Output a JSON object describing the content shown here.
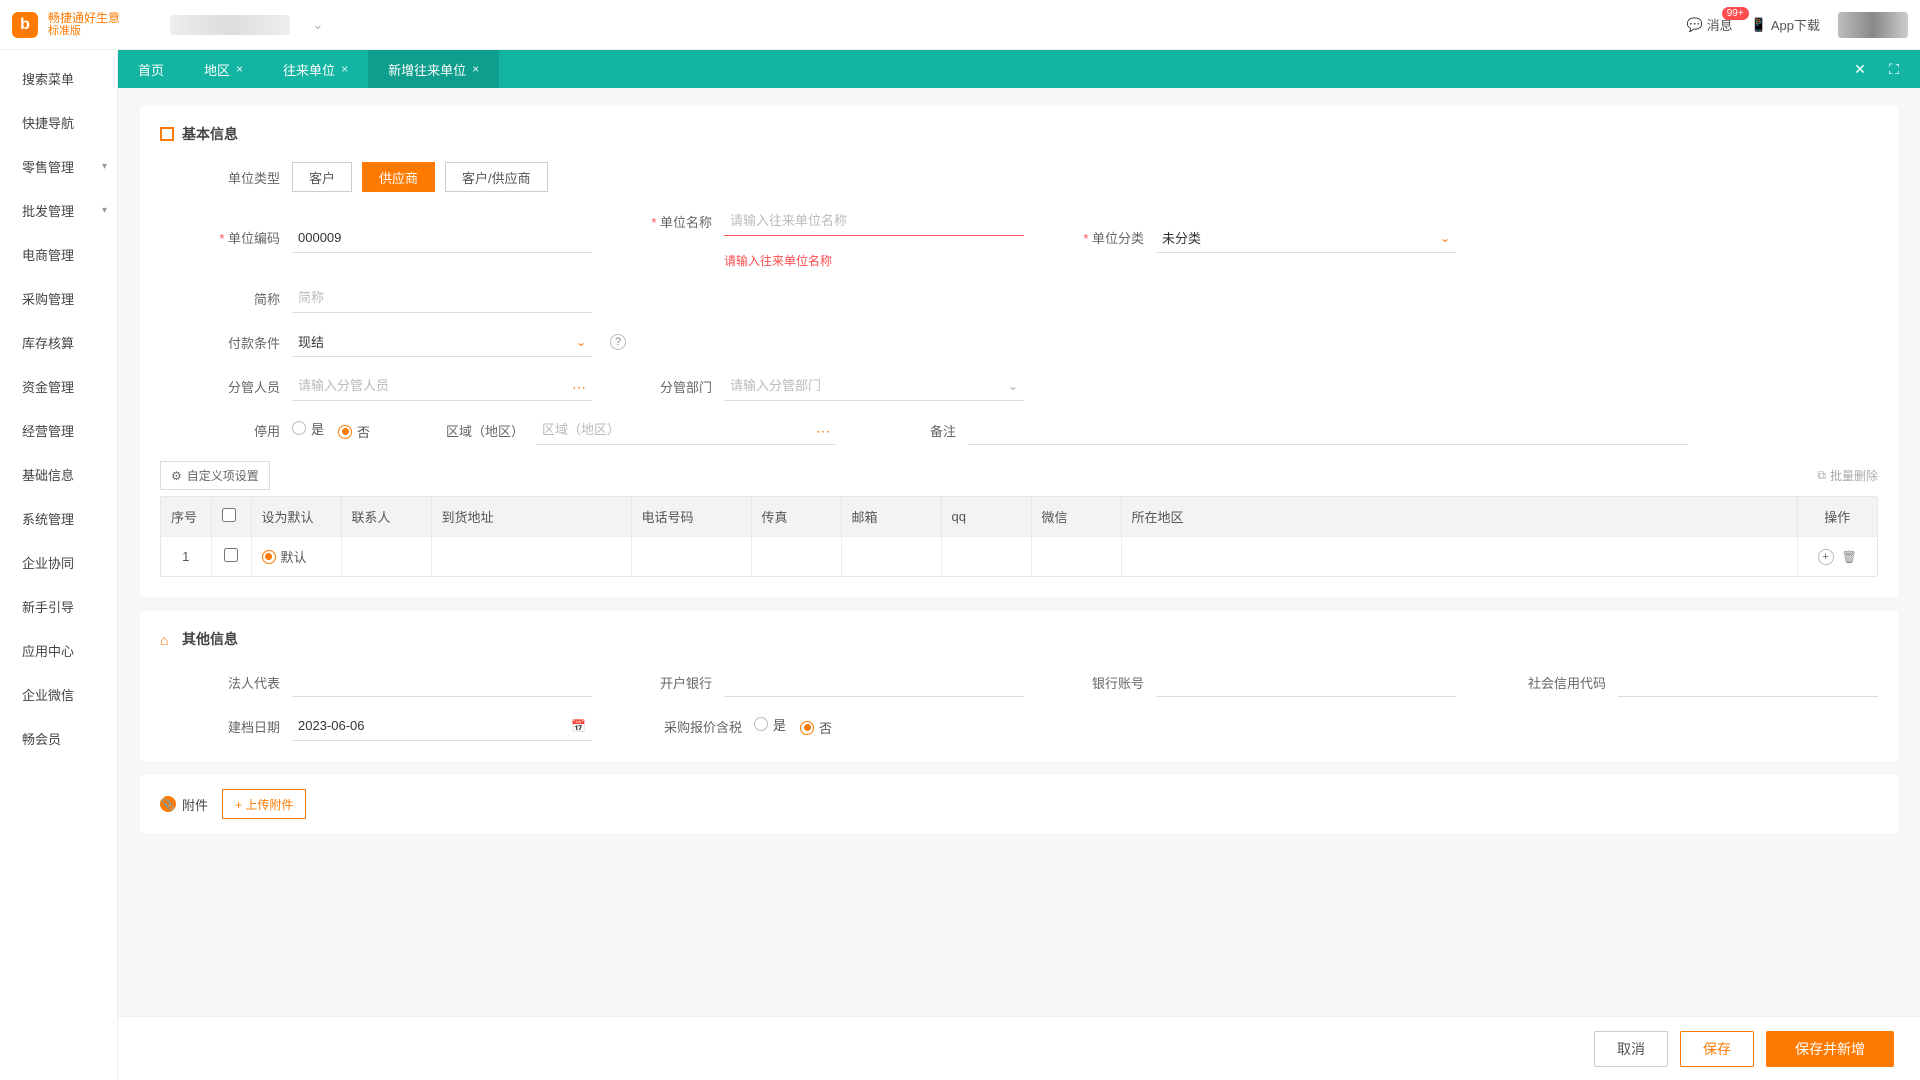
{
  "colors": {
    "accent": "#ff7a00",
    "teal": "#13b5a2",
    "teal_active": "#0f9e8d",
    "error": "#ff4d4f",
    "border": "#e6e6e6",
    "text": "#555555"
  },
  "topbar": {
    "brand_initial": "b",
    "brand_name": "畅捷通好生意",
    "edition_label": "标准版",
    "messages_label": "消息",
    "messages_badge": "99+",
    "download_label": "App下载"
  },
  "sidebar": {
    "items": [
      {
        "label": "搜索菜单",
        "has_caret": false
      },
      {
        "label": "快捷导航",
        "has_caret": false
      },
      {
        "label": "零售管理",
        "has_caret": true
      },
      {
        "label": "批发管理",
        "has_caret": true
      },
      {
        "label": "电商管理",
        "has_caret": false
      },
      {
        "label": "采购管理",
        "has_caret": false
      },
      {
        "label": "库存核算",
        "has_caret": false
      },
      {
        "label": "资金管理",
        "has_caret": false
      },
      {
        "label": "经营管理",
        "has_caret": false
      },
      {
        "label": "基础信息",
        "has_caret": false
      },
      {
        "label": "系统管理",
        "has_caret": false
      },
      {
        "label": "企业协同",
        "has_caret": false
      },
      {
        "label": "新手引导",
        "has_caret": false
      },
      {
        "label": "应用中心",
        "has_caret": false
      },
      {
        "label": "企业微信",
        "has_caret": false
      },
      {
        "label": "畅会员",
        "has_caret": false
      }
    ]
  },
  "tabs": [
    {
      "label": "首页",
      "closable": false,
      "active": false
    },
    {
      "label": "地区",
      "closable": true,
      "active": false
    },
    {
      "label": "往来单位",
      "closable": true,
      "active": false
    },
    {
      "label": "新增往来单位",
      "closable": true,
      "active": true
    }
  ],
  "section_basic": {
    "title": "基本信息",
    "unit_type_label": "单位类型",
    "unit_type_options": [
      "客户",
      "供应商",
      "客户/供应商"
    ],
    "unit_type_selected_index": 1,
    "unit_code_label": "单位编码",
    "unit_code_value": "000009",
    "unit_name_label": "单位名称",
    "unit_name_placeholder": "请输入往来单位名称",
    "unit_name_error": "请输入往来单位名称",
    "unit_category_label": "单位分类",
    "unit_category_value": "未分类",
    "short_name_label": "简称",
    "short_name_placeholder": "简称",
    "pay_terms_label": "付款条件",
    "pay_terms_value": "现结",
    "manager_label": "分管人员",
    "manager_placeholder": "请输入分管人员",
    "dept_label": "分管部门",
    "dept_placeholder": "请输入分管部门",
    "disable_label": "停用",
    "disable_options": [
      "是",
      "否"
    ],
    "disable_selected_index": 1,
    "region_label": "区域（地区）",
    "region_placeholder": "区域（地区）",
    "remark_label": "备注",
    "custom_set_label": "自定义项设置",
    "bulk_delete_label": "批量删除",
    "table": {
      "columns": [
        "序号",
        "",
        "设为默认",
        "联系人",
        "到货地址",
        "电话号码",
        "传真",
        "邮箱",
        "qq",
        "微信",
        "所在地区",
        "操作"
      ],
      "col_widths": [
        "50px",
        "40px",
        "90px",
        "90px",
        "200px",
        "120px",
        "90px",
        "100px",
        "90px",
        "90px",
        "",
        "80px"
      ],
      "rows": [
        {
          "seq": "1",
          "checked": false,
          "default_checked": true,
          "default_label": "默认"
        }
      ]
    }
  },
  "section_other": {
    "title": "其他信息",
    "legal_label": "法人代表",
    "bank_label": "开户银行",
    "account_label": "银行账号",
    "credit_label": "社会信用代码",
    "create_date_label": "建档日期",
    "create_date_value": "2023-06-06",
    "tax_label": "采购报价含税",
    "tax_options": [
      "是",
      "否"
    ],
    "tax_selected_index": 1
  },
  "section_attach": {
    "label": "附件",
    "button_label": "+ 上传附件"
  },
  "footer": {
    "cancel": "取消",
    "save": "保存",
    "save_and_new": "保存并新增"
  }
}
